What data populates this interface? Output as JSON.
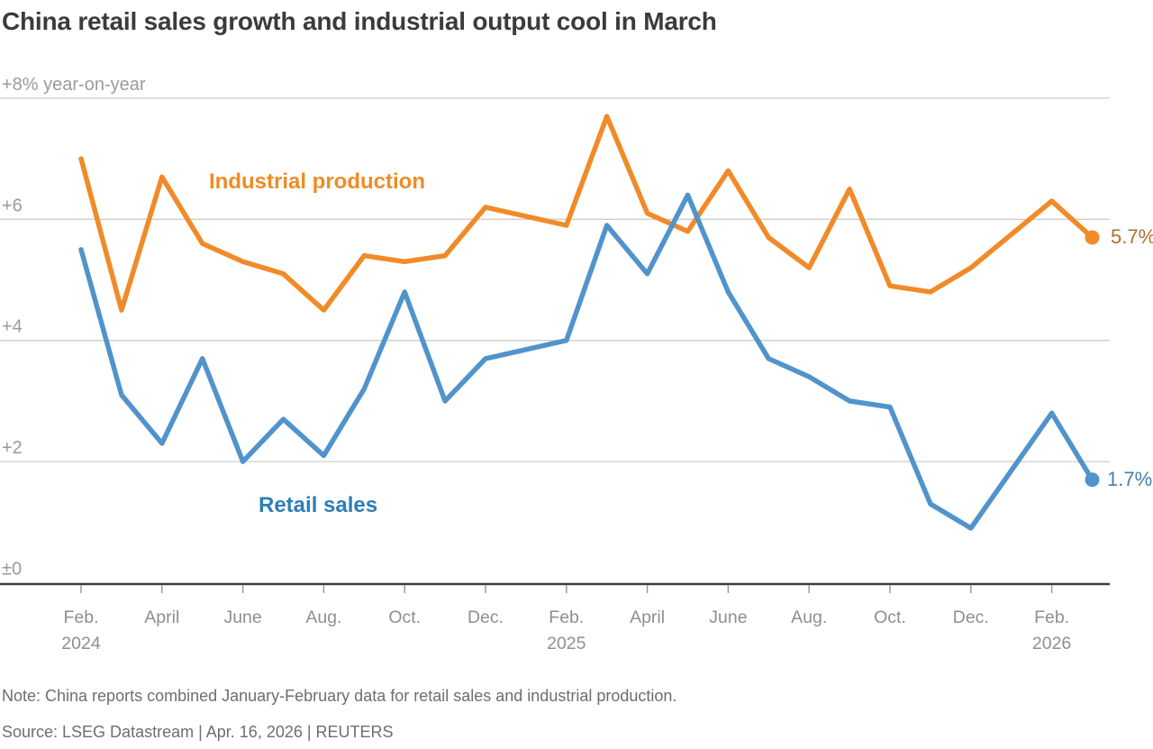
{
  "header": {
    "title": "China retail sales growth and industrial output cool in March"
  },
  "footer": {
    "note": "Note: China reports combined January-February data for retail sales and industrial production.",
    "source": "Source: LSEG Datastream | Apr. 16, 2026 | REUTERS"
  },
  "chart_data": {
    "type": "line",
    "title": "China retail sales growth and industrial output cool in March",
    "unit": "% year-on-year",
    "ylim": [
      0,
      8
    ],
    "grid": "horizontal-only",
    "legend_position": "inline-labels",
    "y_axis": {
      "ticks": [
        {
          "v": 8,
          "label": "+8% year-on-year"
        },
        {
          "v": 6,
          "label": "+6"
        },
        {
          "v": 4,
          "label": "+4"
        },
        {
          "v": 2,
          "label": "+2"
        },
        {
          "v": 0,
          "label": "±0"
        }
      ]
    },
    "x_axis": {
      "note": "m = months since Feb 2024; January omitted (combined Jan-Feb reporting)",
      "ticks": [
        {
          "m": 0,
          "month": "Feb.",
          "year": "2024"
        },
        {
          "m": 2,
          "month": "April",
          "year": ""
        },
        {
          "m": 4,
          "month": "June",
          "year": ""
        },
        {
          "m": 6,
          "month": "Aug.",
          "year": ""
        },
        {
          "m": 8,
          "month": "Oct.",
          "year": ""
        },
        {
          "m": 10,
          "month": "Dec.",
          "year": ""
        },
        {
          "m": 12,
          "month": "Feb.",
          "year": "2025"
        },
        {
          "m": 14,
          "month": "April",
          "year": ""
        },
        {
          "m": 16,
          "month": "June",
          "year": ""
        },
        {
          "m": 18,
          "month": "Aug.",
          "year": ""
        },
        {
          "m": 20,
          "month": "Oct.",
          "year": ""
        },
        {
          "m": 22,
          "month": "Dec.",
          "year": ""
        },
        {
          "m": 24,
          "month": "Feb.",
          "year": "2026"
        }
      ]
    },
    "series": [
      {
        "name": "Industrial production",
        "color": "#f18a28",
        "label_color": "#ef8b25",
        "end_label": "5.7%",
        "end_label_color": "#a9722f",
        "points": [
          [
            0,
            7.0
          ],
          [
            1,
            4.5
          ],
          [
            2,
            6.7
          ],
          [
            3,
            5.6
          ],
          [
            4,
            5.3
          ],
          [
            5,
            5.1
          ],
          [
            6,
            4.5
          ],
          [
            7,
            5.4
          ],
          [
            8,
            5.3
          ],
          [
            9,
            5.4
          ],
          [
            10,
            6.2
          ],
          [
            12,
            5.9
          ],
          [
            13,
            7.7
          ],
          [
            14,
            6.1
          ],
          [
            15,
            5.8
          ],
          [
            16,
            6.8
          ],
          [
            17,
            5.7
          ],
          [
            18,
            5.2
          ],
          [
            19,
            6.5
          ],
          [
            20,
            4.9
          ],
          [
            21,
            4.8
          ],
          [
            22,
            5.2
          ],
          [
            24,
            6.3
          ],
          [
            25,
            5.7
          ]
        ]
      },
      {
        "name": "Retail sales",
        "color": "#5193cb",
        "label_color": "#2e7eb6",
        "end_label": "1.7%",
        "end_label_color": "#4a7fa9",
        "points": [
          [
            0,
            5.5
          ],
          [
            1,
            3.1
          ],
          [
            2,
            2.3
          ],
          [
            3,
            3.7
          ],
          [
            4,
            2.0
          ],
          [
            5,
            2.7
          ],
          [
            6,
            2.1
          ],
          [
            7,
            3.2
          ],
          [
            8,
            4.8
          ],
          [
            9,
            3.0
          ],
          [
            10,
            3.7
          ],
          [
            12,
            4.0
          ],
          [
            13,
            5.9
          ],
          [
            14,
            5.1
          ],
          [
            15,
            6.4
          ],
          [
            16,
            4.8
          ],
          [
            17,
            3.7
          ],
          [
            18,
            3.4
          ],
          [
            19,
            3.0
          ],
          [
            20,
            2.9
          ],
          [
            21,
            1.3
          ],
          [
            22,
            0.9
          ],
          [
            24,
            2.8
          ],
          [
            25,
            1.7
          ]
        ]
      }
    ]
  }
}
